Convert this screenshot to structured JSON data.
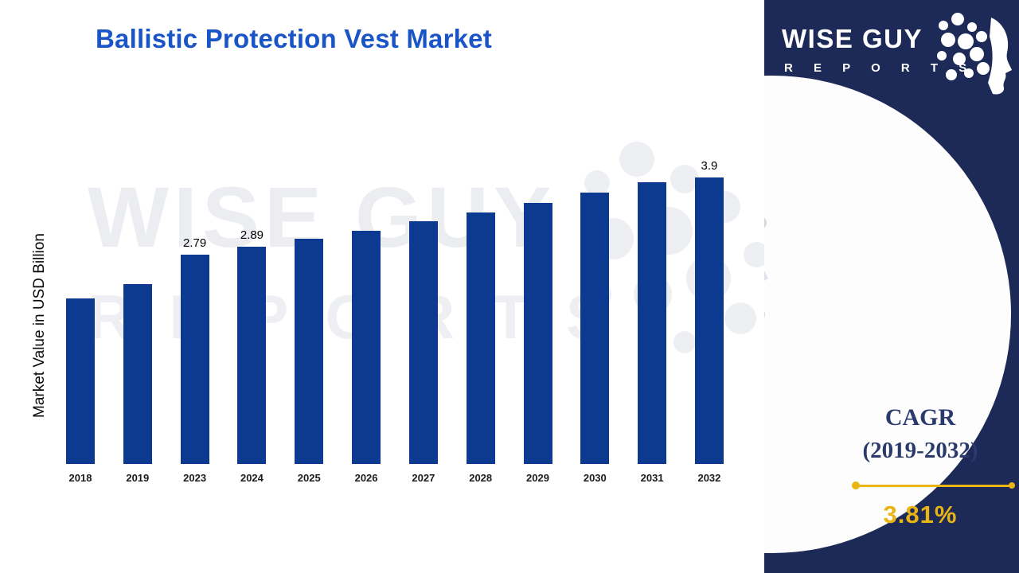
{
  "page": {
    "title": "Ballistic Protection Vest Market"
  },
  "y_axis": {
    "label": "Market Value in USD Billion"
  },
  "watermark": {
    "line1": "WISE GUY",
    "line2": "REPORTS"
  },
  "logo": {
    "name_line": "WISE GUY",
    "reports_line": "R E P O R T S"
  },
  "cagr": {
    "title": "CAGR",
    "range": "(2019-2032)",
    "value": "3.81%"
  },
  "colors": {
    "title_blue": "#1a55c8",
    "bar_navy": "#0c3a90",
    "panel_navy": "#1d2a57",
    "accent_gold": "#eab512"
  },
  "chart_data": {
    "type": "bar",
    "title": "Ballistic Protection Vest Market",
    "xlabel": "",
    "ylabel": "Market Value in USD Billion",
    "categories": [
      "2018",
      "2019",
      "2023",
      "2024",
      "2025",
      "2026",
      "2027",
      "2028",
      "2029",
      "2030",
      "2031",
      "2032"
    ],
    "values": [
      2.2,
      2.4,
      2.79,
      2.89,
      3.0,
      3.11,
      3.23,
      3.35,
      3.48,
      3.61,
      3.75,
      3.9
    ],
    "bar_labels": [
      "",
      "",
      "2.79",
      "2.89",
      "",
      "",
      "",
      "",
      "",
      "",
      "",
      "3.9"
    ],
    "ylim": [
      0,
      3.9
    ],
    "grid": false,
    "legend": "none",
    "bar_color": "#0c3a90"
  }
}
